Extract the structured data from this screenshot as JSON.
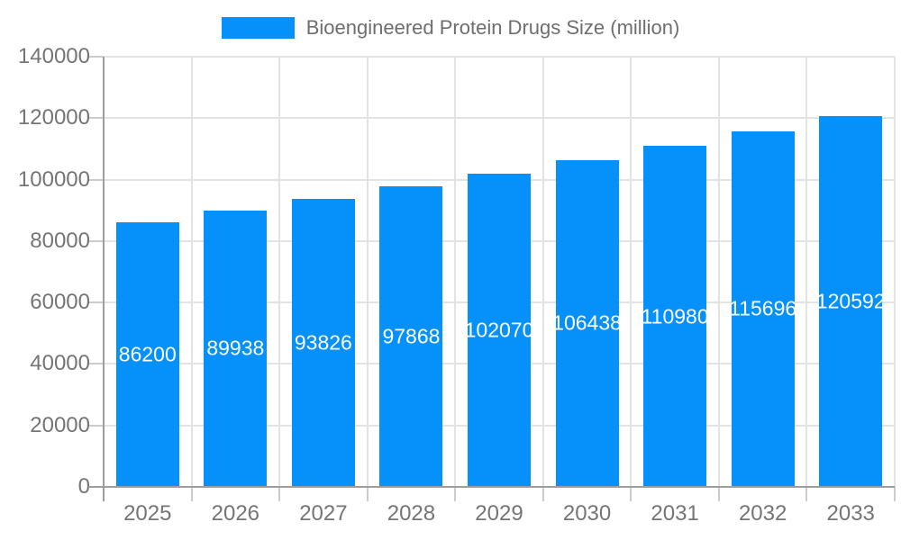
{
  "chart_data": {
    "type": "bar",
    "title": "Bioengineered Protein Drugs Size (million)",
    "legend_position": "top",
    "categories": [
      "2025",
      "2026",
      "2027",
      "2028",
      "2029",
      "2030",
      "2031",
      "2032",
      "2033"
    ],
    "values": [
      86200,
      89938,
      93826,
      97868,
      102070,
      106438,
      110980,
      115696,
      120592
    ],
    "series": [
      {
        "name": "Bioengineered Protein Drugs Size (million)",
        "values": [
          86200,
          89938,
          93826,
          97868,
          102070,
          106438,
          110980,
          115696,
          120592
        ]
      }
    ],
    "xlabel": "",
    "ylabel": "",
    "ylim": [
      0,
      140000
    ],
    "ytick_step": 20000,
    "ytick_labels": [
      "0",
      "20000",
      "40000",
      "60000",
      "80000",
      "100000",
      "120000",
      "140000"
    ],
    "grid": true,
    "value_labels_inside_bars": true,
    "colors": {
      "bar": "#0590FA",
      "gridline": "#E3E3E3",
      "axis_line": "#9E9E9E",
      "tick": "#CCCCCC",
      "axis_text": "#757575",
      "title_text": "#6E6E6E",
      "value_text": "#FFFFFF"
    }
  }
}
